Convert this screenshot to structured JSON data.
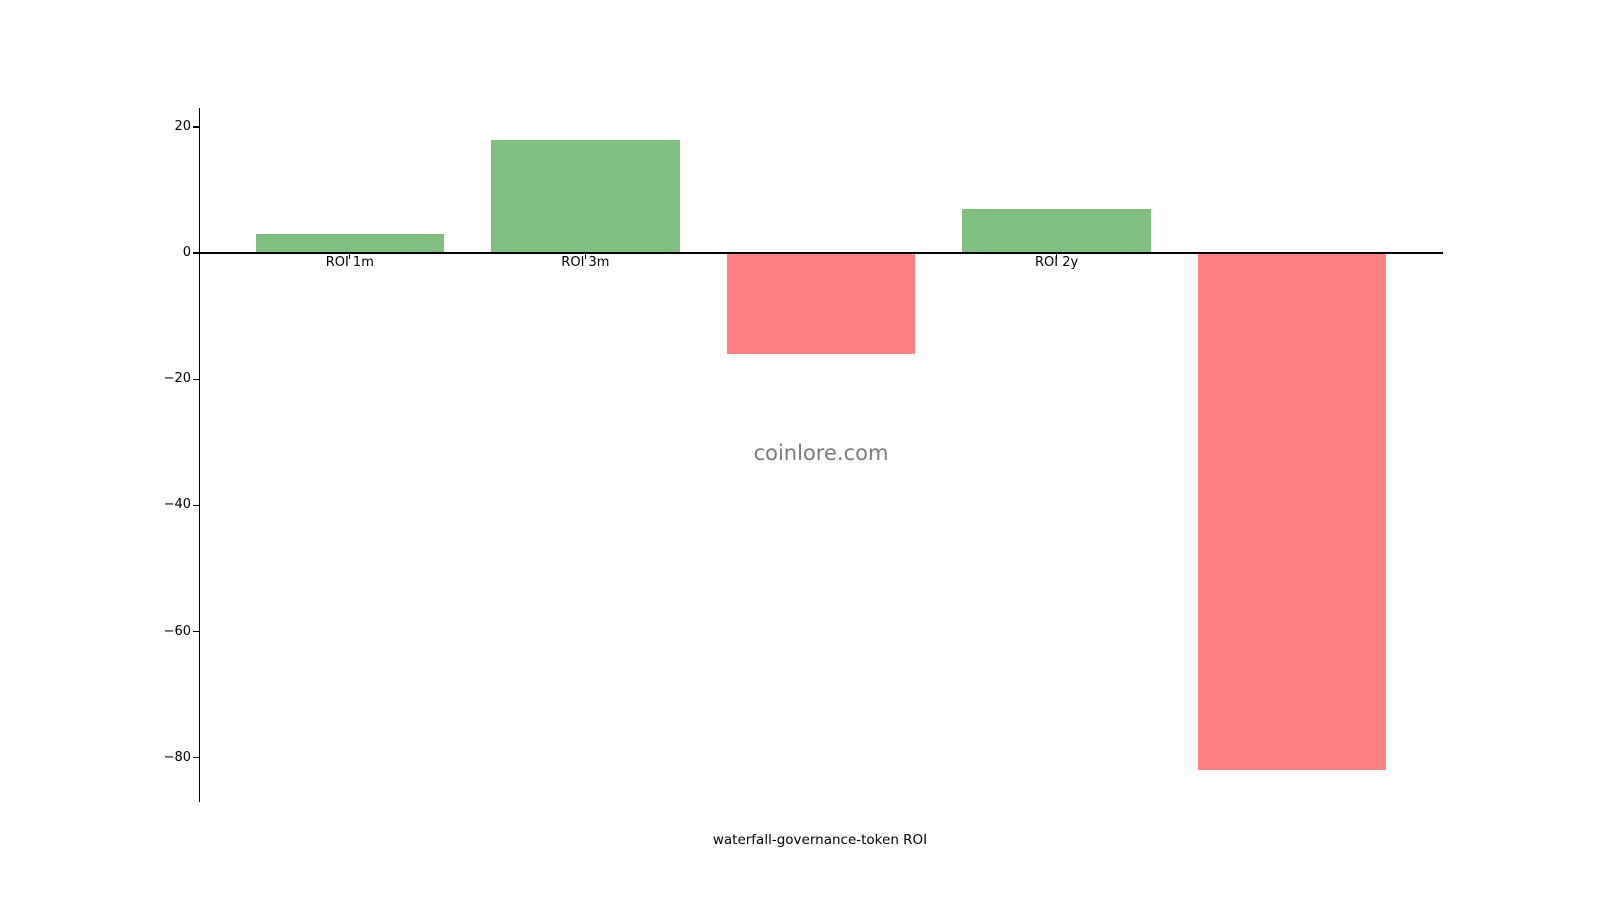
{
  "chart_data": {
    "type": "bar",
    "subtype": "waterfall",
    "title": "waterfall-governance-token ROI",
    "categories": [
      "ROI 1m",
      "ROI 3m",
      "",
      "ROI 2y",
      ""
    ],
    "values": [
      3,
      18,
      -16,
      7,
      -82
    ],
    "bar_colors": [
      "#80bf80",
      "#80bf80",
      "#ff8080",
      "#80bf80",
      "#ff8080"
    ],
    "positive_color": "#80bf80",
    "negative_color": "#ff8080",
    "yticks": [
      {
        "value": 20,
        "label": "20"
      },
      {
        "value": 0,
        "label": "0"
      },
      {
        "value": -20,
        "label": "−20"
      },
      {
        "value": -40,
        "label": "−40"
      },
      {
        "value": -60,
        "label": "−60"
      },
      {
        "value": -80,
        "label": "−80"
      }
    ],
    "ylim": [
      -87,
      23
    ],
    "xlim": [
      -0.64,
      4.64
    ],
    "bar_width_units": 0.8,
    "xlabel": "",
    "ylabel": "",
    "grid": false,
    "legend": false,
    "axis_color": "#000000",
    "text_color": "#000000"
  },
  "watermark": {
    "text": "coinlore.com",
    "color": "#7a7a7a"
  }
}
